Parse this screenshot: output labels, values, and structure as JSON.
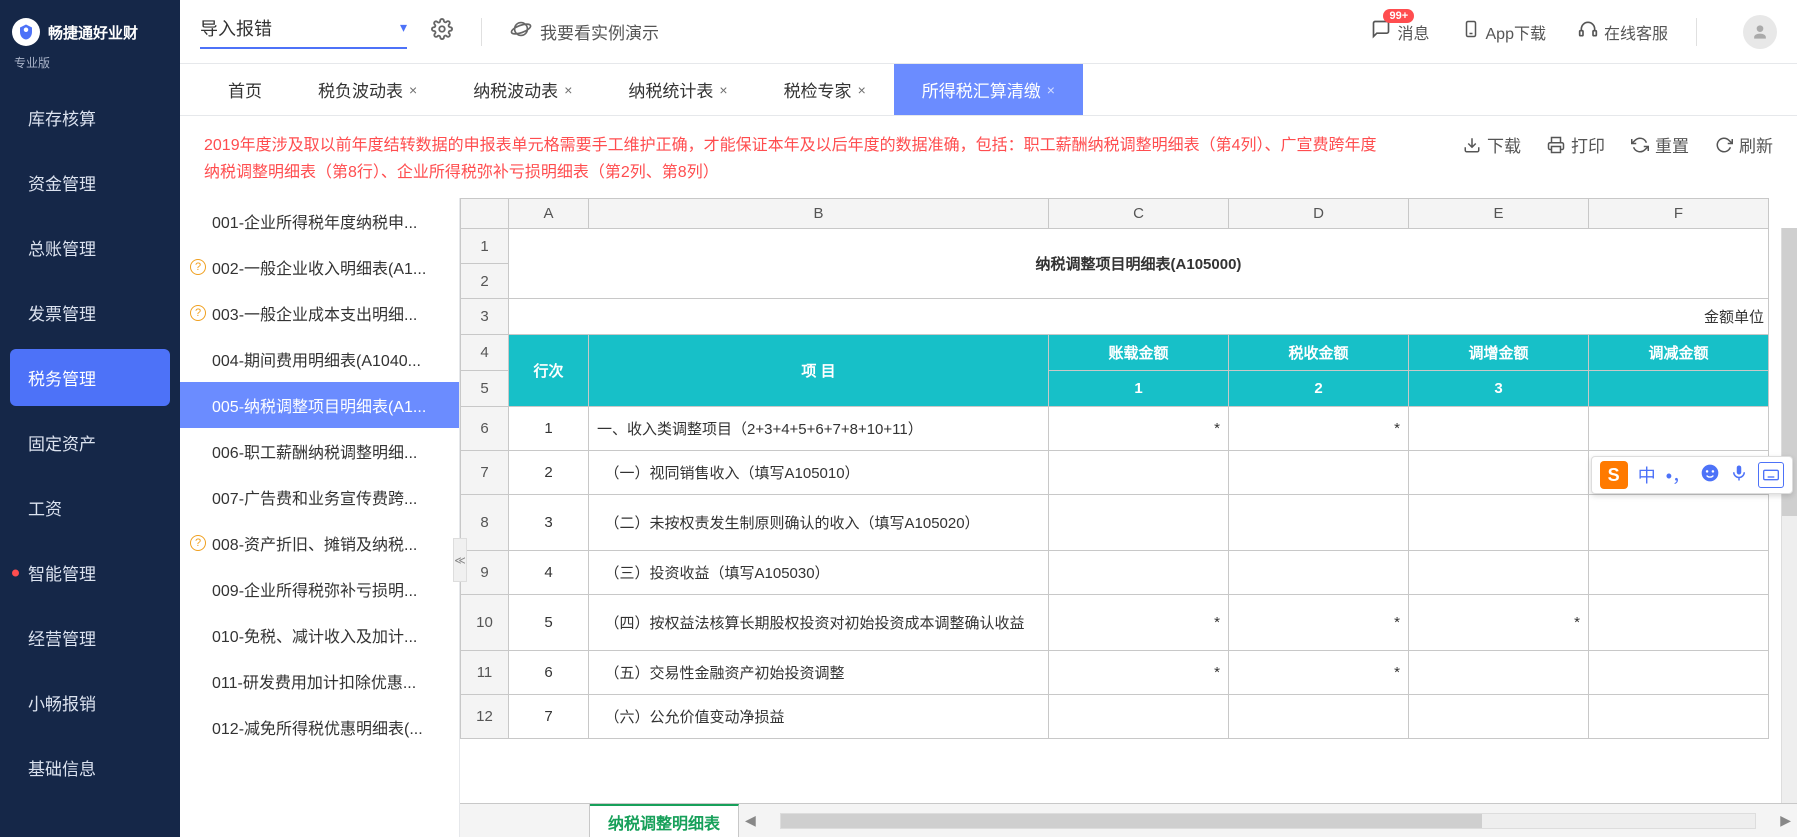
{
  "brand": {
    "name": "畅捷通好业财",
    "edition": "专业版"
  },
  "topbar": {
    "dropdown": "导入报错",
    "demo": "我要看实例演示",
    "message": "消息",
    "badge": "99+",
    "app": "App下载",
    "service": "在线客服"
  },
  "sidebar": {
    "items": [
      {
        "label": "库存核算",
        "active": false,
        "dot": false
      },
      {
        "label": "资金管理",
        "active": false,
        "dot": false
      },
      {
        "label": "总账管理",
        "active": false,
        "dot": false
      },
      {
        "label": "发票管理",
        "active": false,
        "dot": false
      },
      {
        "label": "税务管理",
        "active": true,
        "dot": false
      },
      {
        "label": "固定资产",
        "active": false,
        "dot": false
      },
      {
        "label": "工资",
        "active": false,
        "dot": false
      },
      {
        "label": "智能管理",
        "active": false,
        "dot": true
      },
      {
        "label": "经营管理",
        "active": false,
        "dot": false
      },
      {
        "label": "小畅报销",
        "active": false,
        "dot": false
      },
      {
        "label": "基础信息",
        "active": false,
        "dot": false
      }
    ]
  },
  "tabs": [
    {
      "label": "首页",
      "closable": false,
      "active": false
    },
    {
      "label": "税负波动表",
      "closable": true,
      "active": false
    },
    {
      "label": "纳税波动表",
      "closable": true,
      "active": false
    },
    {
      "label": "纳税统计表",
      "closable": true,
      "active": false
    },
    {
      "label": "税检专家",
      "closable": true,
      "active": false
    },
    {
      "label": "所得税汇算清缴",
      "closable": true,
      "active": true
    }
  ],
  "notice": "2019年度涉及取以前年度结转数据的申报表单元格需要手工维护正确，才能保证本年及以后年度的数据准确，包括：职工薪酬纳税调整明细表（第4列）、广宣费跨年度纳税调整明细表（第8行）、企业所得税弥补亏损明细表（第2列、第8列）",
  "actions": {
    "download": "下载",
    "print": "打印",
    "reset": "重置",
    "refresh": "刷新"
  },
  "tree": [
    {
      "label": "001-企业所得税年度纳税申...",
      "q": false,
      "selected": false
    },
    {
      "label": "002-一般企业收入明细表(A1...",
      "q": true,
      "selected": false
    },
    {
      "label": "003-一般企业成本支出明细...",
      "q": true,
      "selected": false
    },
    {
      "label": "004-期间费用明细表(A1040...",
      "q": false,
      "selected": false
    },
    {
      "label": "005-纳税调整项目明细表(A1...",
      "q": false,
      "selected": true
    },
    {
      "label": "006-职工薪酬纳税调整明细...",
      "q": false,
      "selected": false
    },
    {
      "label": "007-广告费和业务宣传费跨...",
      "q": false,
      "selected": false
    },
    {
      "label": "008-资产折旧、摊销及纳税...",
      "q": true,
      "selected": false
    },
    {
      "label": "009-企业所得税弥补亏损明...",
      "q": false,
      "selected": false
    },
    {
      "label": "010-免税、减计收入及加计...",
      "q": false,
      "selected": false
    },
    {
      "label": "011-研发费用加计扣除优惠...",
      "q": false,
      "selected": false
    },
    {
      "label": "012-减免所得税优惠明细表(...",
      "q": false,
      "selected": false
    }
  ],
  "sheet": {
    "columns": [
      "A",
      "B",
      "C",
      "D",
      "E",
      "F"
    ],
    "title": "纳税调整项目明细表(A105000)",
    "unit": "金额单位",
    "header1": {
      "a": "行次",
      "b": "项 目",
      "c": "账载金额",
      "d": "税收金额",
      "e": "调增金额",
      "f": "调减金额"
    },
    "header2": {
      "c": "1",
      "d": "2",
      "e": "3"
    },
    "rows": [
      {
        "n": "1",
        "proj": "一、收入类调整项目（2+3+4+5+6+7+8+10+11）",
        "c": "*",
        "d": "*",
        "e": "",
        "f": ""
      },
      {
        "n": "2",
        "proj": "　（一）视同销售收入（填写A105010）",
        "c": "",
        "d": "",
        "e": "",
        "f": ""
      },
      {
        "n": "3",
        "proj": "　（二）未按权责发生制原则确认的收入（填写A105020）",
        "c": "",
        "d": "",
        "e": "",
        "f": "",
        "tall": true
      },
      {
        "n": "4",
        "proj": "　（三）投资收益（填写A105030）",
        "c": "",
        "d": "",
        "e": "",
        "f": ""
      },
      {
        "n": "5",
        "proj": "　（四）按权益法核算长期股权投资对初始投资成本调整确认收益",
        "c": "*",
        "d": "*",
        "e": "*",
        "f": "",
        "tall": true
      },
      {
        "n": "6",
        "proj": "　（五）交易性金融资产初始投资调整",
        "c": "*",
        "d": "*",
        "e": "",
        "f": ""
      },
      {
        "n": "7",
        "proj": "　（六）公允价值变动净损益",
        "c": "",
        "d": "",
        "e": "",
        "f": ""
      }
    ],
    "tab": "纳税调整明细表"
  },
  "ime": {
    "s": "S",
    "lang": "中"
  },
  "colors": {
    "sidebar_bg": "#152748",
    "primary": "#4d72f8",
    "tab_active": "#6b8cff",
    "table_header": "#17c0c8",
    "notice": "#ff4d4f",
    "badge": "#ff4d4f"
  }
}
